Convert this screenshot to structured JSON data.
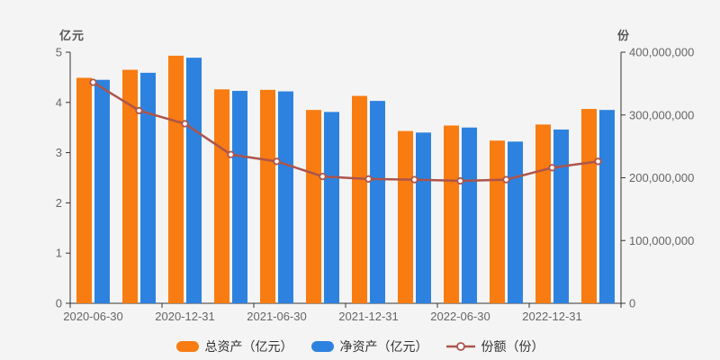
{
  "chart_data": {
    "type": "bar+line",
    "left_axis": {
      "title": "亿元",
      "min": 0,
      "max": 5,
      "ticks": [
        {
          "value": 0,
          "label": "0"
        },
        {
          "value": 1,
          "label": "1"
        },
        {
          "value": 2,
          "label": "2"
        },
        {
          "value": 3,
          "label": "3"
        },
        {
          "value": 4,
          "label": "4"
        },
        {
          "value": 5,
          "label": "5"
        }
      ]
    },
    "right_axis": {
      "title": "份",
      "min": 0,
      "max": 400000000,
      "ticks": [
        {
          "value": 0,
          "label": "0"
        },
        {
          "value": 100000000,
          "label": "100,000,000"
        },
        {
          "value": 200000000,
          "label": "200,000,000"
        },
        {
          "value": 300000000,
          "label": "300,000,000"
        },
        {
          "value": 400000000,
          "label": "400,000,000"
        }
      ]
    },
    "x_labels": [
      "2020-06-30",
      "2020-12-31",
      "2021-06-30",
      "2021-12-31",
      "2022-06-30",
      "2022-12-31"
    ],
    "label_every": 2,
    "series": [
      {
        "id": "total-assets",
        "name": "总资产（亿元）",
        "type": "bar",
        "axis": "left",
        "color": "#f87c11",
        "values": [
          4.49,
          4.65,
          4.93,
          4.26,
          4.25,
          3.85,
          4.13,
          3.43,
          3.54,
          3.24,
          3.56,
          3.87
        ]
      },
      {
        "id": "net-assets",
        "name": "净资产（亿元）",
        "type": "bar",
        "axis": "left",
        "color": "#2e82df",
        "values": [
          4.45,
          4.59,
          4.89,
          4.23,
          4.22,
          3.81,
          4.03,
          3.4,
          3.5,
          3.22,
          3.46,
          3.85
        ]
      },
      {
        "id": "fund-shares",
        "name": "份额（份）",
        "type": "line",
        "axis": "right",
        "color": "#ad544b",
        "marker_fill": "#ffffff",
        "values": [
          352000000,
          307000000,
          286000000,
          237000000,
          226000000,
          202000000,
          198000000,
          197000000,
          195000000,
          197000000,
          216000000,
          226000000
        ]
      }
    ],
    "style": {
      "background": "#f4f4f4",
      "axis_line_color": "#333333",
      "tick_label_color": "#666666",
      "legend_text_color": "#333333",
      "grid": "off",
      "legend_position": "bottom-center"
    }
  }
}
